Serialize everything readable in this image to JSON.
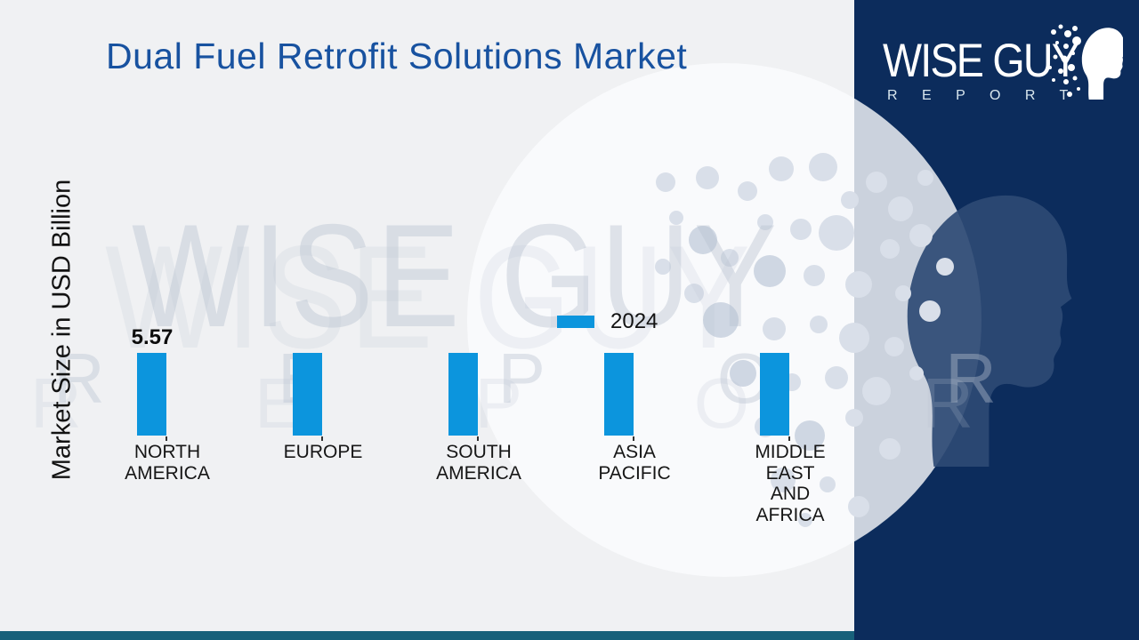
{
  "title": "Dual Fuel Retrofit Solutions Market",
  "brand": {
    "name": "WISE GUY REPORTS",
    "logo_line1": "WISE GUY",
    "logo_line2": "R E P O R T S"
  },
  "watermark": {
    "line1": "WISE GUY",
    "line2": "R E P O R T S"
  },
  "colors": {
    "bar": "#0c95dd",
    "title_text": "#1852a0",
    "panel_navy": "#0c2c5c",
    "footer_teal": "#18607a",
    "label_text": "#161616"
  },
  "chart_data": {
    "type": "bar",
    "title": "Dual Fuel Retrofit Solutions Market",
    "ylabel": "Market Size in USD Billion",
    "xlabel": "",
    "legend": {
      "entries": [
        "2024"
      ],
      "position": "center-right"
    },
    "categories": [
      "NORTH AMERICA",
      "EUROPE",
      "SOUTH AMERICA",
      "ASIA PACIFIC",
      "MIDDLE EAST AND AFRICA"
    ],
    "category_lines": [
      [
        "NORTH",
        "AMERICA"
      ],
      [
        "EUROPE"
      ],
      [
        "SOUTH",
        "AMERICA"
      ],
      [
        "ASIA",
        "PACIFIC"
      ],
      [
        "MIDDLE",
        "EAST",
        "AND",
        "AFRICA"
      ]
    ],
    "series": [
      {
        "name": "2024",
        "values": [
          5.57,
          5.57,
          5.57,
          5.57,
          5.57
        ],
        "value_labels": [
          "5.57",
          "",
          "",
          "",
          ""
        ]
      }
    ],
    "ylim": [
      0,
      6.5
    ],
    "grid": false,
    "axis_lines": false
  }
}
